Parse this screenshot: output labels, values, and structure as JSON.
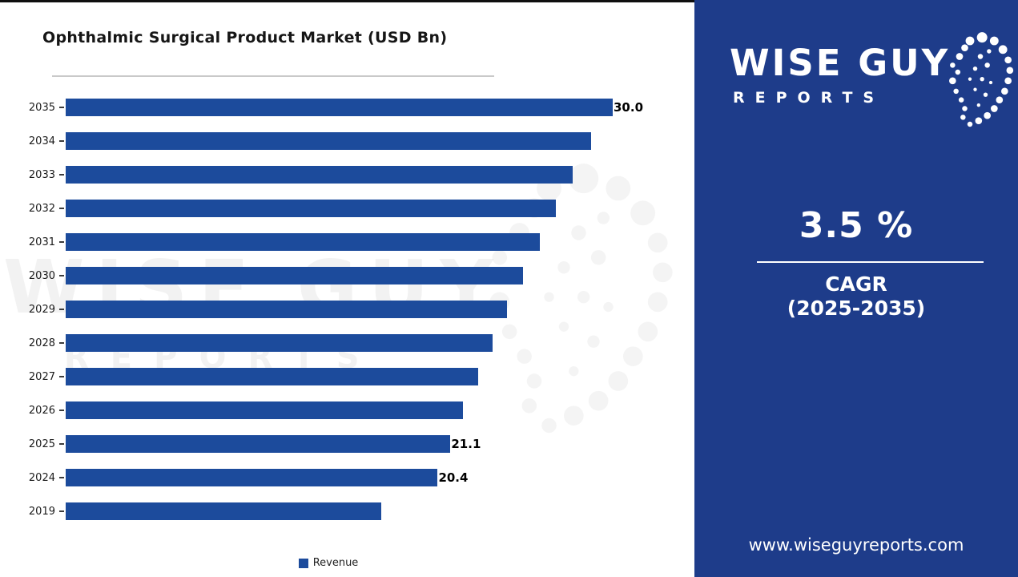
{
  "chart_data": {
    "type": "bar",
    "orientation": "horizontal",
    "title": "Ophthalmic Surgical Product Market (USD Bn)",
    "unit": "USD Bn",
    "categories": [
      "2035",
      "2034",
      "2033",
      "2032",
      "2031",
      "2030",
      "2029",
      "2028",
      "2027",
      "2026",
      "2025",
      "2024",
      "2019"
    ],
    "values": [
      30.0,
      28.8,
      27.8,
      26.9,
      26.0,
      25.1,
      24.2,
      23.4,
      22.6,
      21.8,
      21.1,
      20.4,
      17.3
    ],
    "value_labels": [
      "30.0",
      "",
      "",
      "",
      "",
      "",
      "",
      "",
      "",
      "",
      "21.1",
      "20.4",
      ""
    ],
    "xlim": [
      0,
      30
    ],
    "grid": false,
    "legend_position": "bottom",
    "legend": [
      {
        "name": "Revenue",
        "color": "#1c4b9c"
      }
    ]
  },
  "watermark": {
    "line1": "WISE GUY",
    "line2": "REPORTS"
  },
  "sidebar": {
    "brand_top": "WISE GUY",
    "brand_bottom": "REPORTS",
    "cagr_value": "3.5 %",
    "cagr_label": "CAGR",
    "cagr_period": "(2025-2035)",
    "website": "www.wiseguyreports.com"
  },
  "colors": {
    "bar": "#1c4b9c",
    "panel_bg": "#1e3c8a",
    "title_text": "#161616",
    "divider": "#c9c9c9",
    "panel_text": "#ffffff"
  }
}
